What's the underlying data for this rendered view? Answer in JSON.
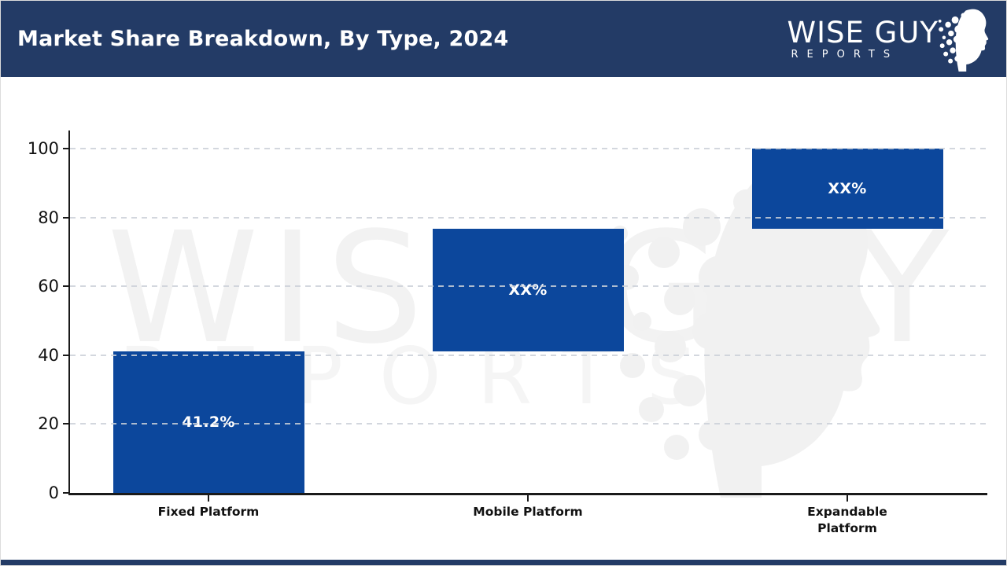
{
  "header": {
    "title": "Market Share Breakdown, By Type, 2024",
    "logo": {
      "brand_top": "WISE GUY",
      "brand_bottom": "REPORTS"
    }
  },
  "watermark": {
    "brand_top": "WISE GUY",
    "brand_bottom": "REPORTS"
  },
  "chart_data": {
    "type": "bar",
    "subtype": "stacked-waterfall-percentage",
    "title": "Market Share Breakdown, By Type, 2024",
    "categories": [
      "Fixed Platform",
      "Mobile Platform",
      "Expandable Platform"
    ],
    "segments": [
      {
        "category": "Fixed Platform",
        "start": 0,
        "end": 41.2,
        "label": "41.2%"
      },
      {
        "category": "Mobile Platform",
        "start": 41.2,
        "end": 76.8,
        "label": "XX%"
      },
      {
        "category": "Expandable Platform",
        "start": 76.8,
        "end": 100,
        "label": "XX%"
      }
    ],
    "yticks": [
      0,
      20,
      40,
      60,
      80,
      100
    ],
    "ylim": [
      0,
      105
    ],
    "grid": "dashed-horizontal",
    "legend": "none",
    "bar_color": "#0C479C",
    "value_label_color": "#FFFFFF"
  },
  "colors": {
    "header_bg": "#233B66",
    "footer_bg": "#233B66",
    "bar": "#0C479C",
    "axis": "#1A1A1A",
    "grid": "#D9D9D9",
    "watermark": "#F2F2F2"
  }
}
